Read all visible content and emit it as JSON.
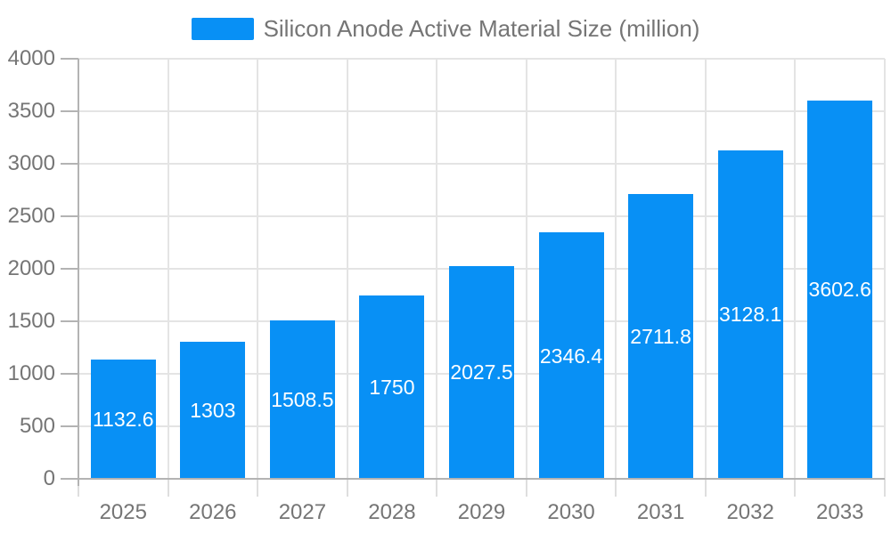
{
  "legend": {
    "label": "Silicon Anode Active Material Size (million)"
  },
  "colors": {
    "bar": "#0890F5",
    "axis_line": "#B3B3B3",
    "grid_line": "#E4E4E4",
    "x_tick": "#DEDEDE",
    "axis_text": "#757575",
    "bar_label_text": "#FFFFFF"
  },
  "chart_data": {
    "type": "bar",
    "title": "Silicon Anode Active Material Size (million)",
    "categories": [
      "2025",
      "2026",
      "2027",
      "2028",
      "2029",
      "2030",
      "2031",
      "2032",
      "2033"
    ],
    "values": [
      1132.6,
      1303,
      1508.5,
      1750,
      2027.5,
      2346.4,
      2711.8,
      3128.1,
      3602.6
    ],
    "value_labels": [
      "1132.6",
      "1303",
      "1508.5",
      "1750",
      "2027.5",
      "2346.4",
      "2711.8",
      "3128.1",
      "3602.6"
    ],
    "xlabel": "",
    "ylabel": "",
    "ylim": [
      0,
      4000
    ],
    "ytick_step": 500,
    "yticks": [
      0,
      500,
      1000,
      1500,
      2000,
      2500,
      3000,
      3500,
      4000
    ],
    "grid": true,
    "grid_vertical": true,
    "legend_position": "top-center",
    "value_label_position": "inside-center"
  }
}
